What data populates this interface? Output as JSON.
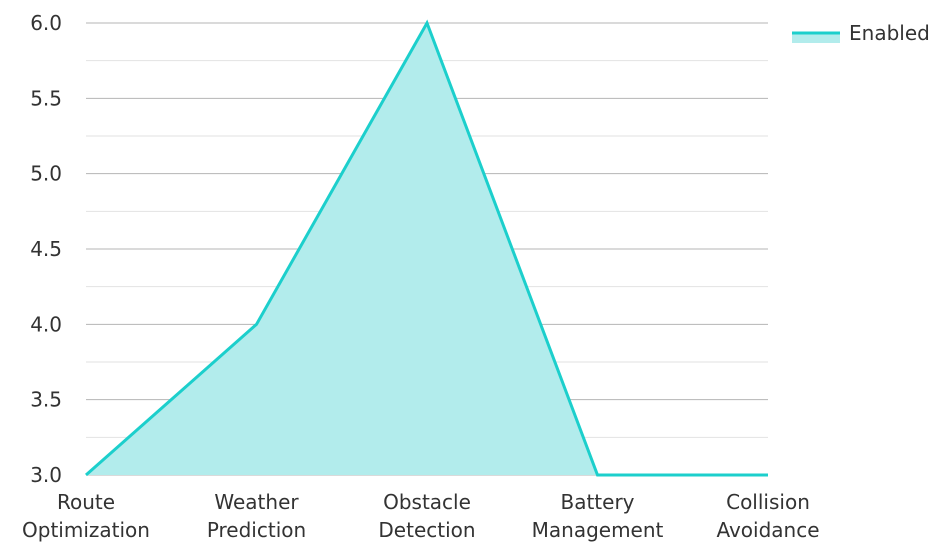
{
  "chart_data": {
    "type": "area",
    "categories": [
      [
        "Route",
        "Optimization"
      ],
      [
        "Weather",
        "Prediction"
      ],
      [
        "Obstacle",
        "Detection"
      ],
      [
        "Battery",
        "Management"
      ],
      [
        "Collision",
        "Avoidance"
      ]
    ],
    "series": [
      {
        "name": "Enabled",
        "values": [
          3.0,
          4.0,
          6.0,
          3.0,
          3.0
        ]
      }
    ],
    "ylim": [
      3.0,
      6.0
    ],
    "yticks": [
      "3.0",
      "3.5",
      "4.0",
      "4.5",
      "5.0",
      "5.5",
      "6.0"
    ],
    "grid": true,
    "legend": "top-right",
    "colors": {
      "line": "#1ccfcc",
      "fill": "#b2ecec",
      "major_grid": "#b5b5b5",
      "minor_grid": "#e2e2e2"
    }
  }
}
